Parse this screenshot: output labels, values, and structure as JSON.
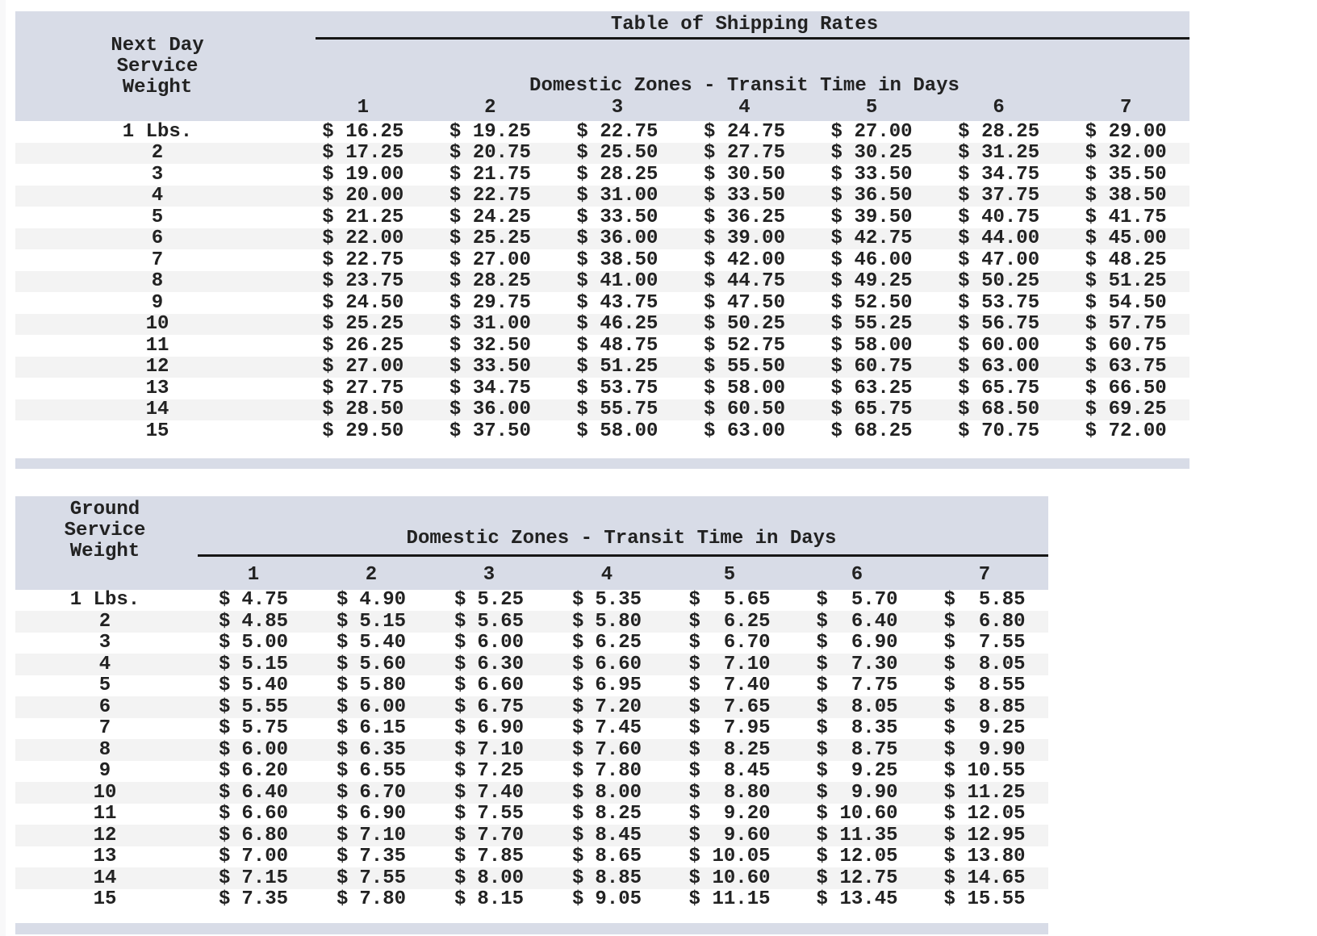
{
  "colors": {
    "header_band": "#d8dce7",
    "row_stripe": "#f3f3f3",
    "rule": "#161616",
    "text": "#222222"
  },
  "table1": {
    "name": "Next Day Service shipping rates",
    "title": "Table of Shipping Rates",
    "weight_header": [
      "Next Day",
      "Service",
      "Weight"
    ],
    "zones_caption": "Domestic Zones - Transit Time in Days",
    "zone_labels": [
      "1",
      "2",
      "3",
      "4",
      "5",
      "6",
      "7"
    ],
    "currency": "$",
    "rows": [
      {
        "weight": "1 Lbs.",
        "rates": [
          "16.25",
          "19.25",
          "22.75",
          "24.75",
          "27.00",
          "28.25",
          "29.00"
        ]
      },
      {
        "weight": "2",
        "rates": [
          "17.25",
          "20.75",
          "25.50",
          "27.75",
          "30.25",
          "31.25",
          "32.00"
        ]
      },
      {
        "weight": "3",
        "rates": [
          "19.00",
          "21.75",
          "28.25",
          "30.50",
          "33.50",
          "34.75",
          "35.50"
        ]
      },
      {
        "weight": "4",
        "rates": [
          "20.00",
          "22.75",
          "31.00",
          "33.50",
          "36.50",
          "37.75",
          "38.50"
        ]
      },
      {
        "weight": "5",
        "rates": [
          "21.25",
          "24.25",
          "33.50",
          "36.25",
          "39.50",
          "40.75",
          "41.75"
        ]
      },
      {
        "weight": "6",
        "rates": [
          "22.00",
          "25.25",
          "36.00",
          "39.00",
          "42.75",
          "44.00",
          "45.00"
        ]
      },
      {
        "weight": "7",
        "rates": [
          "22.75",
          "27.00",
          "38.50",
          "42.00",
          "46.00",
          "47.00",
          "48.25"
        ]
      },
      {
        "weight": "8",
        "rates": [
          "23.75",
          "28.25",
          "41.00",
          "44.75",
          "49.25",
          "50.25",
          "51.25"
        ]
      },
      {
        "weight": "9",
        "rates": [
          "24.50",
          "29.75",
          "43.75",
          "47.50",
          "52.50",
          "53.75",
          "54.50"
        ]
      },
      {
        "weight": "10",
        "rates": [
          "25.25",
          "31.00",
          "46.25",
          "50.25",
          "55.25",
          "56.75",
          "57.75"
        ]
      },
      {
        "weight": "11",
        "rates": [
          "26.25",
          "32.50",
          "48.75",
          "52.75",
          "58.00",
          "60.00",
          "60.75"
        ]
      },
      {
        "weight": "12",
        "rates": [
          "27.00",
          "33.50",
          "51.25",
          "55.50",
          "60.75",
          "63.00",
          "63.75"
        ]
      },
      {
        "weight": "13",
        "rates": [
          "27.75",
          "34.75",
          "53.75",
          "58.00",
          "63.25",
          "65.75",
          "66.50"
        ]
      },
      {
        "weight": "14",
        "rates": [
          "28.50",
          "36.00",
          "55.75",
          "60.50",
          "65.75",
          "68.50",
          "69.25"
        ]
      },
      {
        "weight": "15",
        "rates": [
          "29.50",
          "37.50",
          "58.00",
          "63.00",
          "68.25",
          "70.75",
          "72.00"
        ]
      }
    ]
  },
  "table2": {
    "name": "Ground Service shipping rates",
    "weight_header": [
      "Ground",
      "Service",
      "Weight"
    ],
    "zones_caption": "Domestic Zones - Transit Time in Days",
    "zone_labels": [
      "1",
      "2",
      "3",
      "4",
      "5",
      "6",
      "7"
    ],
    "currency": "$",
    "rows": [
      {
        "weight": "1 Lbs.",
        "rates": [
          "4.75",
          "4.90",
          "5.25",
          "5.35",
          "5.65",
          "5.70",
          "5.85"
        ]
      },
      {
        "weight": "2",
        "rates": [
          "4.85",
          "5.15",
          "5.65",
          "5.80",
          "6.25",
          "6.40",
          "6.80"
        ]
      },
      {
        "weight": "3",
        "rates": [
          "5.00",
          "5.40",
          "6.00",
          "6.25",
          "6.70",
          "6.90",
          "7.55"
        ]
      },
      {
        "weight": "4",
        "rates": [
          "5.15",
          "5.60",
          "6.30",
          "6.60",
          "7.10",
          "7.30",
          "8.05"
        ]
      },
      {
        "weight": "5",
        "rates": [
          "5.40",
          "5.80",
          "6.60",
          "6.95",
          "7.40",
          "7.75",
          "8.55"
        ]
      },
      {
        "weight": "6",
        "rates": [
          "5.55",
          "6.00",
          "6.75",
          "7.20",
          "7.65",
          "8.05",
          "8.85"
        ]
      },
      {
        "weight": "7",
        "rates": [
          "5.75",
          "6.15",
          "6.90",
          "7.45",
          "7.95",
          "8.35",
          "9.25"
        ]
      },
      {
        "weight": "8",
        "rates": [
          "6.00",
          "6.35",
          "7.10",
          "7.60",
          "8.25",
          "8.75",
          "9.90"
        ]
      },
      {
        "weight": "9",
        "rates": [
          "6.20",
          "6.55",
          "7.25",
          "7.80",
          "8.45",
          "9.25",
          "10.55"
        ]
      },
      {
        "weight": "10",
        "rates": [
          "6.40",
          "6.70",
          "7.40",
          "8.00",
          "8.80",
          "9.90",
          "11.25"
        ]
      },
      {
        "weight": "11",
        "rates": [
          "6.60",
          "6.90",
          "7.55",
          "8.25",
          "9.20",
          "10.60",
          "12.05"
        ]
      },
      {
        "weight": "12",
        "rates": [
          "6.80",
          "7.10",
          "7.70",
          "8.45",
          "9.60",
          "11.35",
          "12.95"
        ]
      },
      {
        "weight": "13",
        "rates": [
          "7.00",
          "7.35",
          "7.85",
          "8.65",
          "10.05",
          "12.05",
          "13.80"
        ]
      },
      {
        "weight": "14",
        "rates": [
          "7.15",
          "7.55",
          "8.00",
          "8.85",
          "10.60",
          "12.75",
          "14.65"
        ]
      },
      {
        "weight": "15",
        "rates": [
          "7.35",
          "7.80",
          "8.15",
          "9.05",
          "11.15",
          "13.45",
          "15.55"
        ]
      }
    ]
  }
}
